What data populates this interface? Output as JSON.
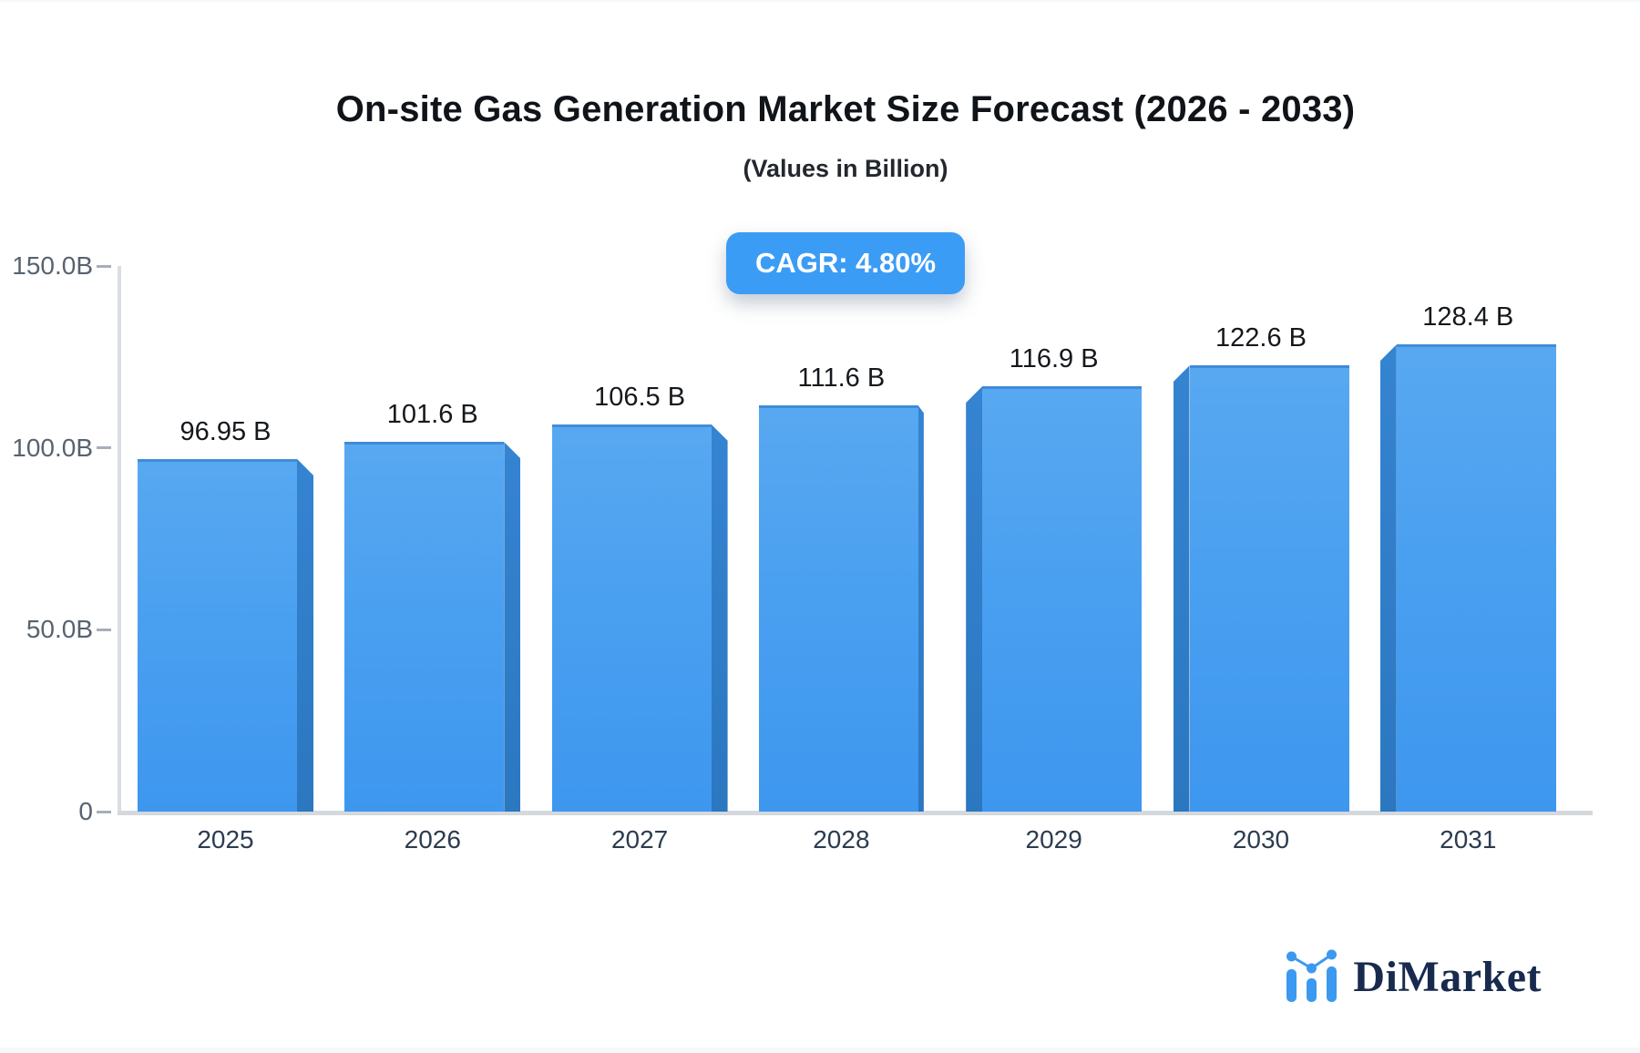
{
  "page": {
    "title": "On-site Gas Generation Market Size Forecast (2026 - 2033)",
    "subtitle": "(Values in Billion)",
    "badge_label": "CAGR: 4.80%"
  },
  "chart_data": {
    "type": "bar",
    "title": "On-site Gas Generation Market Size Forecast (2026 - 2033)",
    "subtitle": "(Values in Billion)",
    "cagr_label": "CAGR: 4.80%",
    "categories": [
      "2025",
      "2026",
      "2027",
      "2028",
      "2029",
      "2030",
      "2031"
    ],
    "values": [
      96.95,
      101.6,
      106.5,
      111.6,
      116.9,
      122.6,
      128.4
    ],
    "value_labels": [
      "96.95 B",
      "101.6 B",
      "106.5 B",
      "111.6 B",
      "116.9 B",
      "122.6 B",
      "128.4 B"
    ],
    "unit": "Billion",
    "ylim": [
      0,
      150
    ],
    "ytick_values": [
      150,
      100,
      50,
      0
    ],
    "ytick_labels": [
      "150.0B",
      "100.0B",
      "50.0B",
      "0"
    ],
    "grid": false,
    "legend": false,
    "bar_style": "3d-beveled",
    "colors": {
      "bar_face": "#3f99ef",
      "bar_side": "#2e7cc6",
      "badge_bg": "#3b9cf5",
      "badge_text": "#ffffff",
      "axis": "#d5d8dd",
      "tick_text": "#58636f",
      "year_text": "#2c3c50",
      "value_text": "#15181c"
    }
  },
  "branding": {
    "logo_text": "DiMarket",
    "logo_icon": "bar-chart-sparkline-icon",
    "logo_color": "#182a4e",
    "logo_icon_color": "#3b9af0"
  }
}
